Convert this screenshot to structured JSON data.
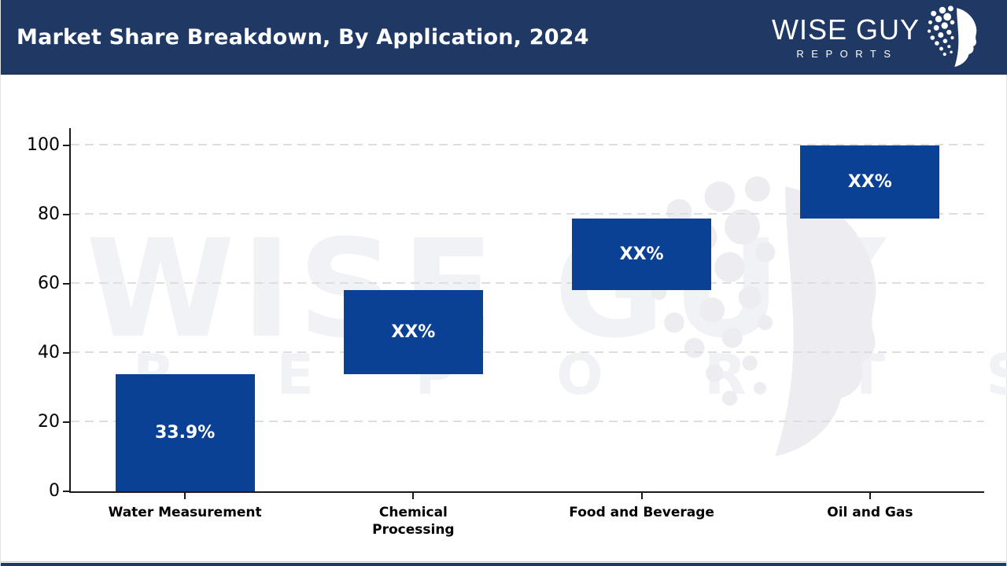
{
  "header": {
    "title": "Market Share Breakdown, By Application, 2024",
    "bg_color": "#1f3864",
    "logo": {
      "wordmark": "WISE GUY",
      "subtitle": "REPORTS"
    }
  },
  "watermark": {
    "line1": "WISE GUY",
    "line2": "R E P O R T S"
  },
  "chart_data": {
    "type": "bar",
    "subtype": "waterfall",
    "title": "Market Share Breakdown, By Application, 2024",
    "categories": [
      "Water Measurement",
      "Chemical\nProcessing",
      "Food and Beverage",
      "Oil and Gas"
    ],
    "segments": [
      {
        "category": "Water Measurement",
        "start": 0,
        "end": 33.9,
        "label": "33.9%"
      },
      {
        "category": "Chemical Processing",
        "start": 33.9,
        "end": 58.2,
        "label": "XX%"
      },
      {
        "category": "Food and Beverage",
        "start": 58.2,
        "end": 78.9,
        "label": "XX%"
      },
      {
        "category": "Oil and Gas",
        "start": 78.9,
        "end": 100,
        "label": "XX%"
      }
    ],
    "ylim": [
      0,
      105
    ],
    "yticks": [
      0,
      20,
      40,
      60,
      80,
      100
    ],
    "grid": "horizontal-dashed",
    "legend": "none",
    "bar_color": "#0a4194",
    "bar_label_color": "#ffffff",
    "axis_color": "#1a1a1a",
    "grid_color": "#dedede"
  }
}
